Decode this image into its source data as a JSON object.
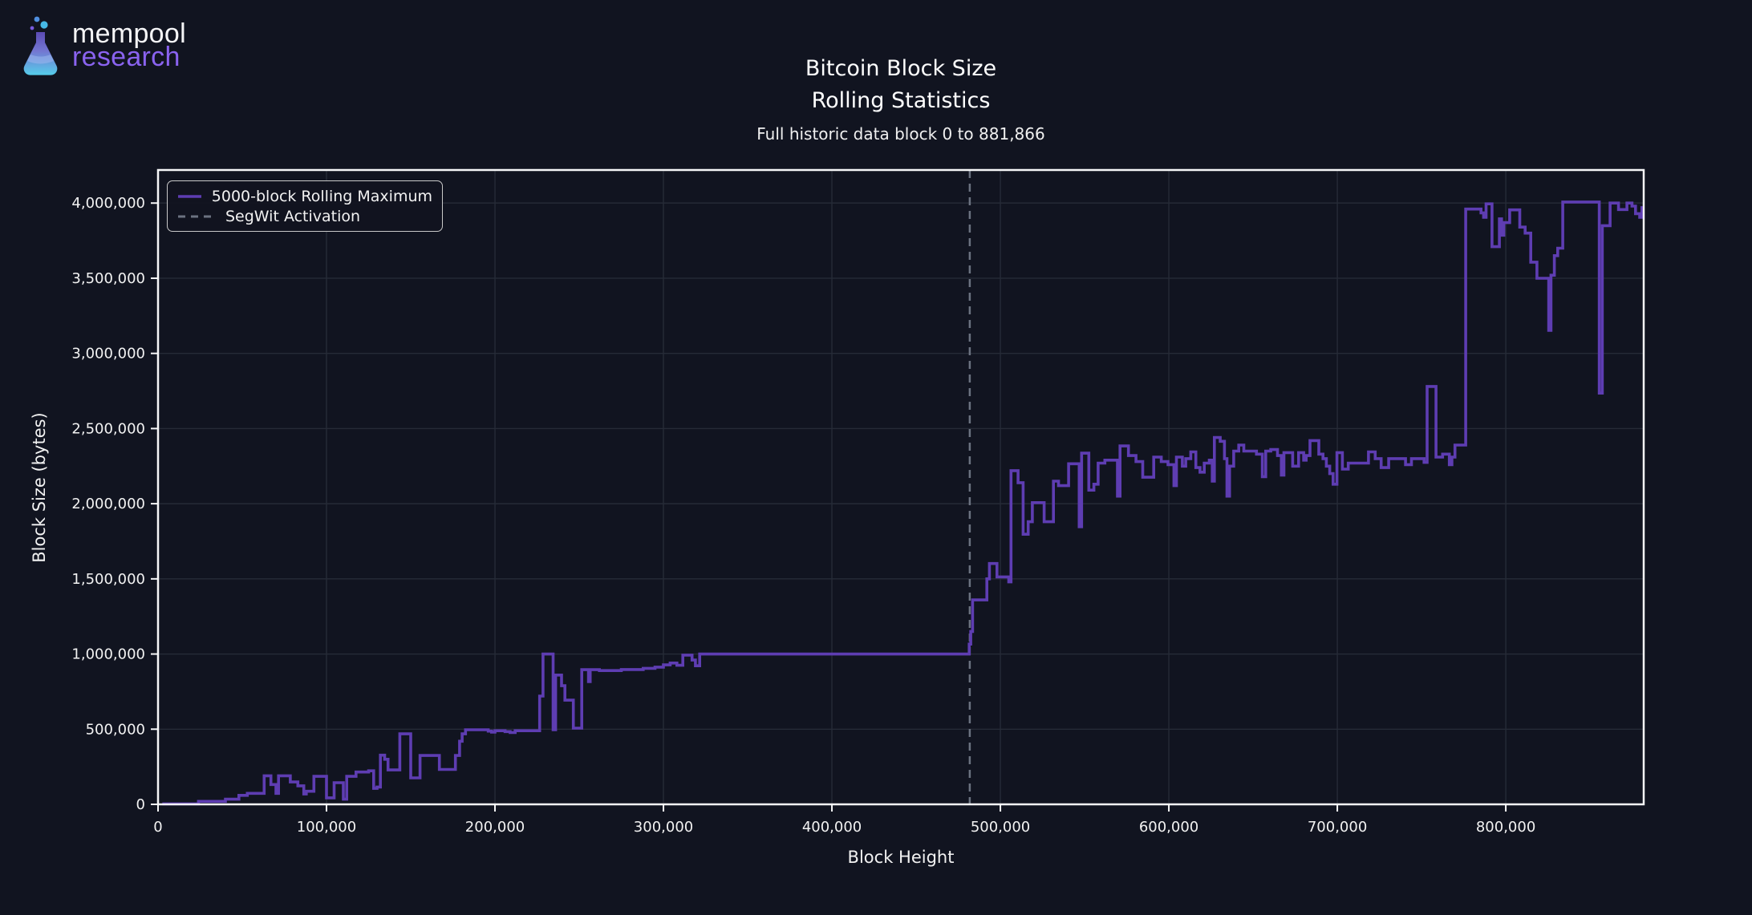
{
  "logo": {
    "line1": "mempool",
    "line2": "research"
  },
  "title": {
    "line1": "Bitcoin Block Size",
    "line2": "Rolling Statistics",
    "subtitle": "Full historic data block 0 to 881,866"
  },
  "colors": {
    "background": "#111420",
    "text": "#f2f2f2",
    "grid": "#262b37",
    "spine": "#f7f7f8",
    "rolling_max_line": "#5e3db2",
    "segwit_line": "#6b7280",
    "logo_purple": "#8a63f0"
  },
  "chart_data": {
    "type": "line",
    "title": "Bitcoin Block Size Rolling Statistics",
    "subtitle": "Full historic data block 0 to 881,866",
    "xlabel": "Block Height",
    "ylabel": "Block Size (bytes)",
    "xlim": [
      0,
      881866
    ],
    "ylim": [
      0,
      4220000
    ],
    "grid": true,
    "legend_position": "upper left",
    "x_ticks": [
      0,
      100000,
      200000,
      300000,
      400000,
      500000,
      600000,
      700000,
      800000
    ],
    "x_tick_labels": [
      "0",
      "100,000",
      "200,000",
      "300,000",
      "400,000",
      "500,000",
      "600,000",
      "700,000",
      "800,000"
    ],
    "y_ticks": [
      0,
      500000,
      1000000,
      1500000,
      2000000,
      2500000,
      3000000,
      3500000,
      4000000
    ],
    "y_tick_labels": [
      "0",
      "500,000",
      "1,000,000",
      "1,500,000",
      "2,000,000",
      "2,500,000",
      "3,000,000",
      "3,500,000",
      "4,000,000"
    ],
    "vlines": [
      {
        "name": "SegWit Activation",
        "x": 481824,
        "style": "dashed"
      }
    ],
    "series": [
      {
        "name": "5000-block Rolling Maximum",
        "style": "solid",
        "step_points": [
          [
            2500,
            3000
          ],
          [
            24000,
            20000
          ],
          [
            40000,
            34000
          ],
          [
            48000,
            60000
          ],
          [
            53000,
            73000
          ],
          [
            63000,
            190000
          ],
          [
            67000,
            132000
          ],
          [
            70000,
            73000
          ],
          [
            71500,
            190000
          ],
          [
            78500,
            149000
          ],
          [
            83000,
            123000
          ],
          [
            86500,
            69000
          ],
          [
            88000,
            87000
          ],
          [
            92500,
            186000
          ],
          [
            100000,
            43000
          ],
          [
            104500,
            144000
          ],
          [
            110000,
            34000
          ],
          [
            112000,
            186000
          ],
          [
            117500,
            215000
          ],
          [
            125000,
            223000
          ],
          [
            128000,
            106000
          ],
          [
            130000,
            115000
          ],
          [
            132000,
            327000
          ],
          [
            134500,
            300000
          ],
          [
            136500,
            229000
          ],
          [
            143500,
            469000
          ],
          [
            150000,
            176000
          ],
          [
            155500,
            325000
          ],
          [
            167000,
            232000
          ],
          [
            176500,
            325000
          ],
          [
            179000,
            420000
          ],
          [
            180500,
            469000
          ],
          [
            182500,
            496000
          ],
          [
            196000,
            487000
          ],
          [
            198000,
            480000
          ],
          [
            200000,
            490000
          ],
          [
            206000,
            484000
          ],
          [
            209000,
            478000
          ],
          [
            212000,
            490000
          ],
          [
            226500,
            720000
          ],
          [
            228500,
            1000000
          ],
          [
            234500,
            496000
          ],
          [
            236000,
            860000
          ],
          [
            239500,
            789000
          ],
          [
            241500,
            693000
          ],
          [
            246500,
            507000
          ],
          [
            251500,
            896000
          ],
          [
            255500,
            816000
          ],
          [
            256500,
            896000
          ],
          [
            262000,
            890000
          ],
          [
            275000,
            897000
          ],
          [
            288000,
            905000
          ],
          [
            295000,
            913000
          ],
          [
            300000,
            928000
          ],
          [
            304000,
            940000
          ],
          [
            308000,
            925000
          ],
          [
            311500,
            993000
          ],
          [
            317000,
            960000
          ],
          [
            319000,
            922000
          ],
          [
            321500,
            1000000
          ],
          [
            481500,
            1066000
          ],
          [
            482400,
            1150000
          ],
          [
            483500,
            1360000
          ],
          [
            492000,
            1500000
          ],
          [
            493500,
            1602000
          ],
          [
            498000,
            1513000
          ],
          [
            505000,
            1480000
          ],
          [
            506300,
            2220000
          ],
          [
            510500,
            2140000
          ],
          [
            513500,
            1797000
          ],
          [
            516500,
            1880000
          ],
          [
            519000,
            2007000
          ],
          [
            526000,
            1880000
          ],
          [
            531500,
            2150000
          ],
          [
            534500,
            2120000
          ],
          [
            540500,
            2266000
          ],
          [
            546800,
            1847000
          ],
          [
            548200,
            2336000
          ],
          [
            552500,
            2090000
          ],
          [
            555500,
            2130000
          ],
          [
            558000,
            2270000
          ],
          [
            562000,
            2290000
          ],
          [
            569500,
            2050000
          ],
          [
            571000,
            2384000
          ],
          [
            576000,
            2320000
          ],
          [
            580500,
            2280000
          ],
          [
            584500,
            2176000
          ],
          [
            591000,
            2310000
          ],
          [
            595500,
            2280000
          ],
          [
            599500,
            2260000
          ],
          [
            603000,
            2120000
          ],
          [
            604500,
            2310000
          ],
          [
            608000,
            2250000
          ],
          [
            610000,
            2300000
          ],
          [
            613000,
            2345000
          ],
          [
            616000,
            2240000
          ],
          [
            618500,
            2210000
          ],
          [
            621000,
            2270000
          ],
          [
            624000,
            2290000
          ],
          [
            625800,
            2150000
          ],
          [
            627000,
            2440000
          ],
          [
            630500,
            2415000
          ],
          [
            633000,
            2300000
          ],
          [
            634500,
            2050000
          ],
          [
            636000,
            2250000
          ],
          [
            638500,
            2350000
          ],
          [
            641500,
            2390000
          ],
          [
            644500,
            2350000
          ],
          [
            652000,
            2330000
          ],
          [
            655500,
            2180000
          ],
          [
            657500,
            2350000
          ],
          [
            660500,
            2360000
          ],
          [
            664500,
            2320000
          ],
          [
            666800,
            2190000
          ],
          [
            668300,
            2340000
          ],
          [
            673500,
            2250000
          ],
          [
            677000,
            2340000
          ],
          [
            680000,
            2290000
          ],
          [
            681500,
            2320000
          ],
          [
            683800,
            2420000
          ],
          [
            689000,
            2330000
          ],
          [
            691500,
            2300000
          ],
          [
            693500,
            2250000
          ],
          [
            695500,
            2200000
          ],
          [
            697500,
            2130000
          ],
          [
            699800,
            2340000
          ],
          [
            703000,
            2230000
          ],
          [
            706500,
            2270000
          ],
          [
            718500,
            2345000
          ],
          [
            722500,
            2300000
          ],
          [
            726000,
            2240000
          ],
          [
            730500,
            2300000
          ],
          [
            740500,
            2260000
          ],
          [
            744000,
            2300000
          ],
          [
            751500,
            2275000
          ],
          [
            753300,
            2780000
          ],
          [
            758600,
            2310000
          ],
          [
            762500,
            2330000
          ],
          [
            766500,
            2260000
          ],
          [
            768000,
            2310000
          ],
          [
            769800,
            2390000
          ],
          [
            776200,
            3960000
          ],
          [
            785300,
            3935000
          ],
          [
            786800,
            3905000
          ],
          [
            788300,
            3995000
          ],
          [
            791800,
            3710000
          ],
          [
            796200,
            3895000
          ],
          [
            797500,
            3786000
          ],
          [
            798800,
            3870000
          ],
          [
            802300,
            3955000
          ],
          [
            808300,
            3840000
          ],
          [
            811500,
            3800000
          ],
          [
            814800,
            3607000
          ],
          [
            818500,
            3500000
          ],
          [
            825500,
            3153000
          ],
          [
            826800,
            3520000
          ],
          [
            828800,
            3650000
          ],
          [
            830800,
            3700000
          ],
          [
            833800,
            4007000
          ],
          [
            855500,
            2736000
          ],
          [
            857300,
            3850000
          ],
          [
            861900,
            4000000
          ],
          [
            866900,
            3957000
          ],
          [
            871900,
            4000000
          ],
          [
            874900,
            3980000
          ],
          [
            877000,
            3930000
          ],
          [
            879500,
            3905000
          ],
          [
            880800,
            3970000
          ],
          [
            881866,
            3970000
          ]
        ]
      }
    ]
  }
}
